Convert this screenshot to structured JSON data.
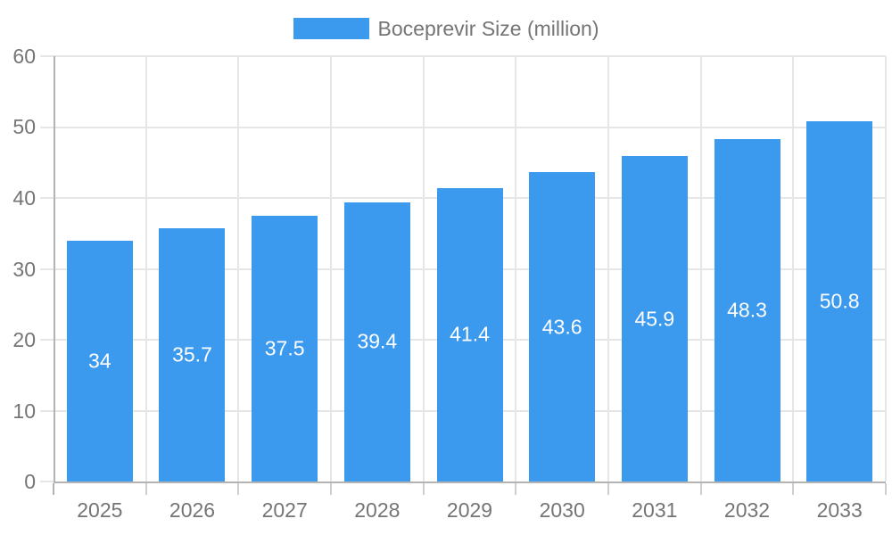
{
  "legend": {
    "label": "Boceprevir Size (million)"
  },
  "chart_data": {
    "type": "bar",
    "title": "",
    "legend": "Boceprevir Size (million)",
    "legend_position": "top",
    "categories": [
      "2025",
      "2026",
      "2027",
      "2028",
      "2029",
      "2030",
      "2031",
      "2032",
      "2033"
    ],
    "values": [
      34,
      35.7,
      37.5,
      39.4,
      41.4,
      43.6,
      45.9,
      48.3,
      50.8
    ],
    "xlabel": "",
    "ylabel": "",
    "ylim": [
      0,
      60
    ],
    "yticks": [
      0,
      10,
      20,
      30,
      40,
      50,
      60
    ],
    "grid": true,
    "colors": {
      "bar": "#3b99ee",
      "value_label": "#ffffff",
      "axis_text": "#757575",
      "axis_line": "#b3b3b3",
      "gridline": "#e6e6e6",
      "tick": "#cfcfcf",
      "background": "#ffffff"
    }
  }
}
